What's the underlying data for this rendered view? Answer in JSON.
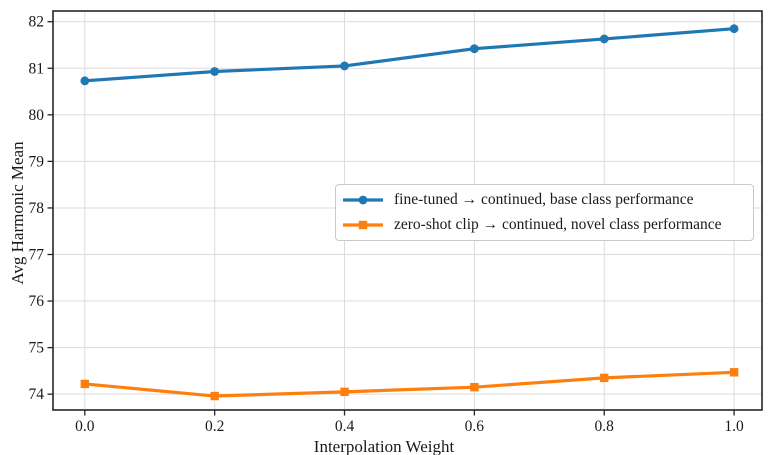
{
  "chart_data": {
    "type": "line",
    "title": "",
    "xlabel": "Interpolation Weight",
    "ylabel": "Avg Harmonic Mean",
    "x": [
      0.0,
      0.2,
      0.4,
      0.6,
      0.8,
      1.0
    ],
    "xtick_labels": [
      "0.0",
      "0.2",
      "0.4",
      "0.6",
      "0.8",
      "1.0"
    ],
    "yticks": [
      74,
      75,
      76,
      77,
      78,
      79,
      80,
      81,
      82
    ],
    "xlim": [
      -0.049,
      1.043
    ],
    "ylim": [
      73.66,
      82.23
    ],
    "grid": true,
    "legend_position": "center-right",
    "series": [
      {
        "name": "fine-tuned → continued, base class performance",
        "color": "#1f77b4",
        "marker": "circle",
        "values": [
          80.73,
          80.93,
          81.05,
          81.42,
          81.63,
          81.85
        ]
      },
      {
        "name": "zero-shot clip → continued, novel class performance",
        "color": "#ff7f0e",
        "marker": "square",
        "values": [
          74.22,
          73.96,
          74.05,
          74.15,
          74.35,
          74.47
        ]
      }
    ],
    "style": {
      "grid_color": "#dcdcdc",
      "spine_color": "#262626",
      "tick_color": "#262626",
      "text_color": "#1a1a1a"
    }
  }
}
